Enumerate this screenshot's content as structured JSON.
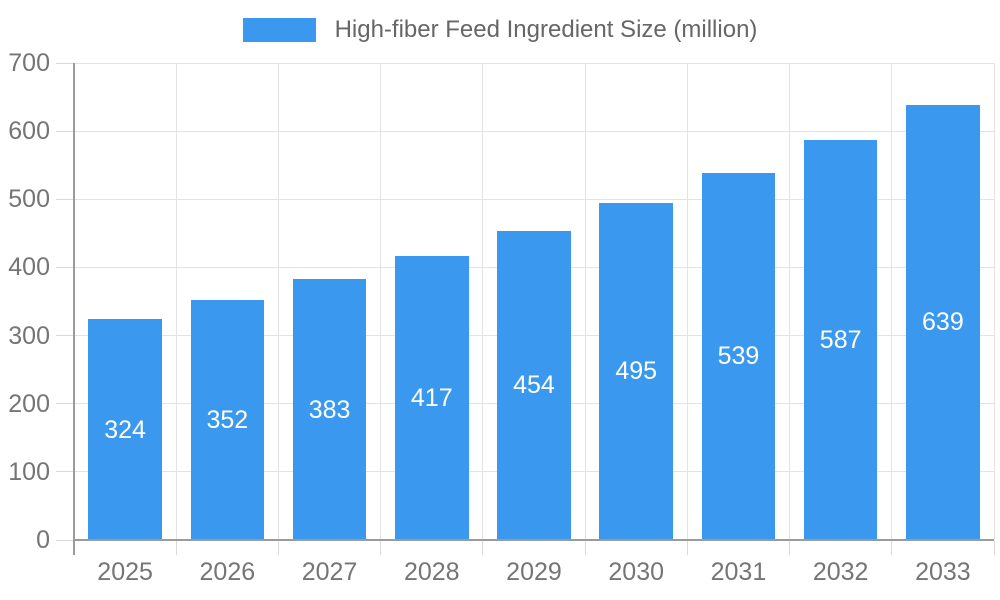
{
  "chart_data": {
    "type": "bar",
    "title": "High-fiber Feed Ingredient Size (million)",
    "legend": [
      "High-fiber Feed Ingredient Size (million)"
    ],
    "legend_position": "top-center",
    "categories": [
      "2025",
      "2026",
      "2027",
      "2028",
      "2029",
      "2030",
      "2031",
      "2032",
      "2033"
    ],
    "values": [
      324,
      352,
      383,
      417,
      454,
      495,
      539,
      587,
      639
    ],
    "xlabel": "",
    "ylabel": "",
    "ylim": [
      0,
      700
    ],
    "ytick_step": 100,
    "yticks": [
      0,
      100,
      200,
      300,
      400,
      500,
      600,
      700
    ],
    "grid": true,
    "value_labels": "inside-center"
  },
  "colors": {
    "bar": "#3A99EE",
    "grid": "#E3E3E3",
    "tick": "#D9D9D9",
    "axis": "#9B9B9B",
    "text": "#757575",
    "legend_text": "#666666",
    "value_label": "#FFFFFF",
    "bg": "#FFFFFF"
  }
}
